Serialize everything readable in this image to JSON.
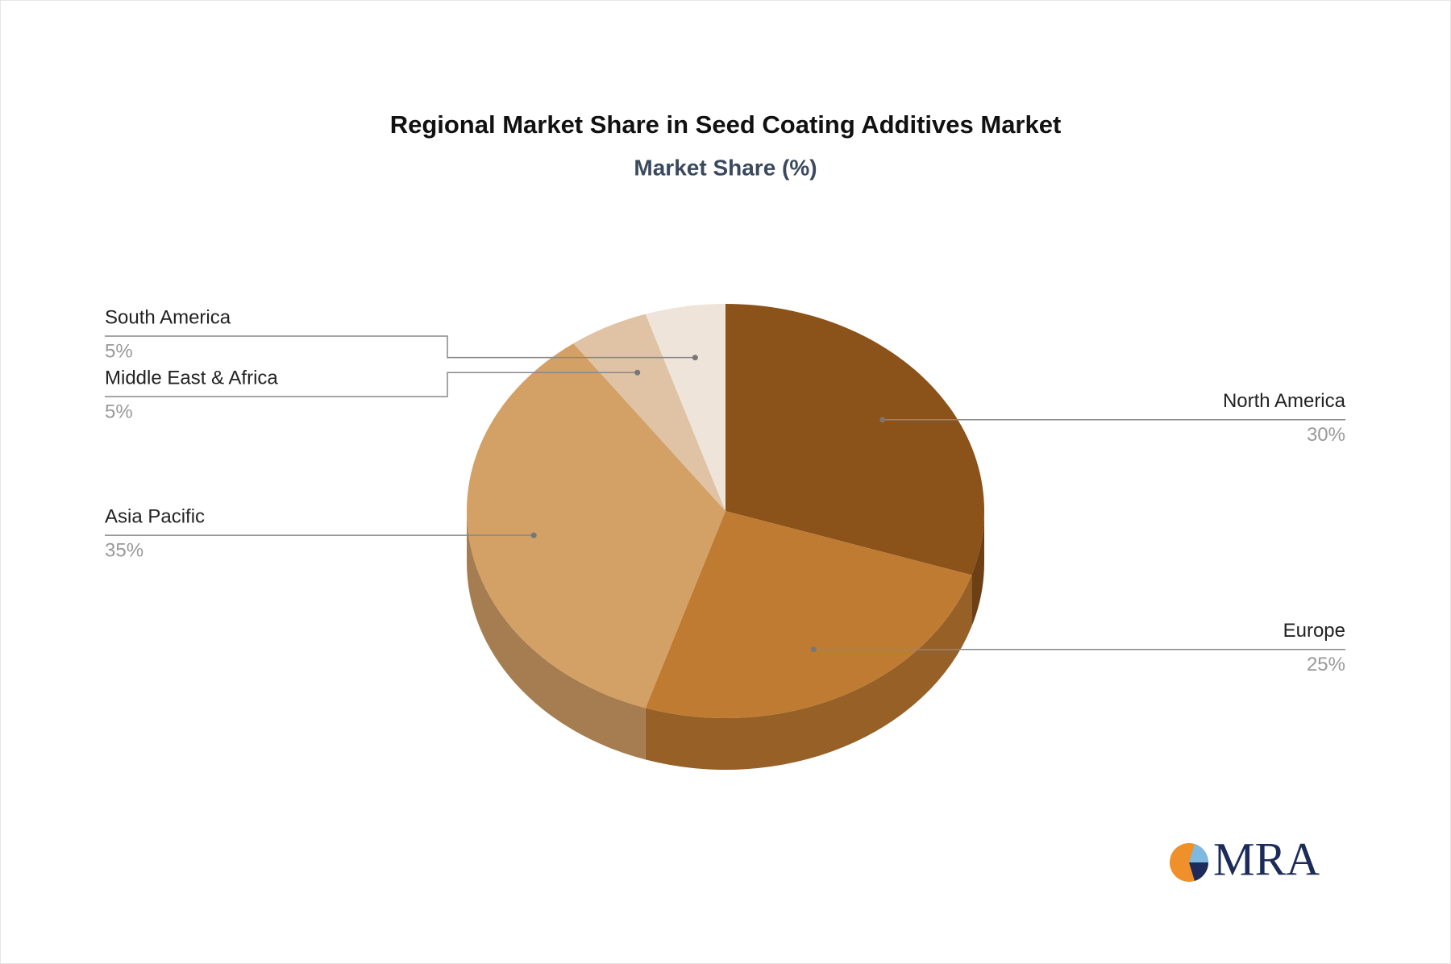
{
  "chart_data": {
    "type": "pie",
    "title": "Regional Market Share in Seed Coating Additives Market",
    "subtitle": "Market Share (%)",
    "categories": [
      "North America",
      "Europe",
      "Asia Pacific",
      "Middle East & Africa",
      "South America"
    ],
    "values": [
      30,
      25,
      35,
      5,
      5
    ],
    "value_labels": [
      "30%",
      "25%",
      "35%",
      "5%",
      "5%"
    ],
    "colors": [
      "#8b5219",
      "#c07b32",
      "#d3a066",
      "#dfc3a4",
      "#efe4da"
    ]
  },
  "logo": "MRA"
}
